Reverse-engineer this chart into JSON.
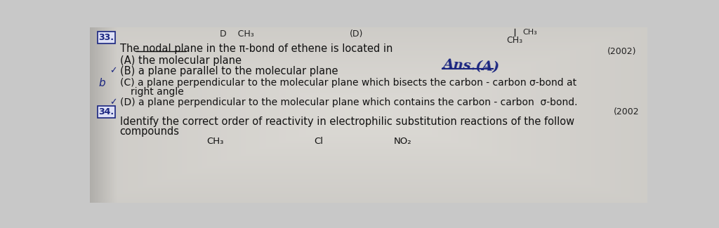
{
  "bg_color": "#c8c8c8",
  "page_color": "#e8e7e2",
  "top_left_text": "D    CH₃",
  "top_center_text": "(D)",
  "top_right_ch3_line": "CH₃",
  "year1": "(2002)",
  "q33_num": "33.",
  "question": "The nodal plane in the π-bond of ethene is located in",
  "optA": "(A) the molecular plane",
  "optB": "(B) a plane parallel to the molecular plane",
  "optC": "(C) a plane perpendicular to the molecular plane which bisects the carbon - carbon σ-bond at",
  "optC2": "right angle",
  "optD": "(D) a plane perpendicular to the molecular plane which contains the carbon - carbon  σ-bond.",
  "year2": "(2002",
  "q34_num": "34.",
  "question2": "Identify the correct order of reactivity in electrophilic substitution reactions of the follow",
  "question2b": "compounds",
  "bottom_ch3": "CH₃",
  "bottom_cl": "Cl",
  "bottom_no2": "NO₂",
  "ans_text": "Ans.(A)",
  "text_color": "#222222",
  "dark_color": "#111111",
  "blue_ink": "#1a2580",
  "handwrite_color": "#1a2580"
}
